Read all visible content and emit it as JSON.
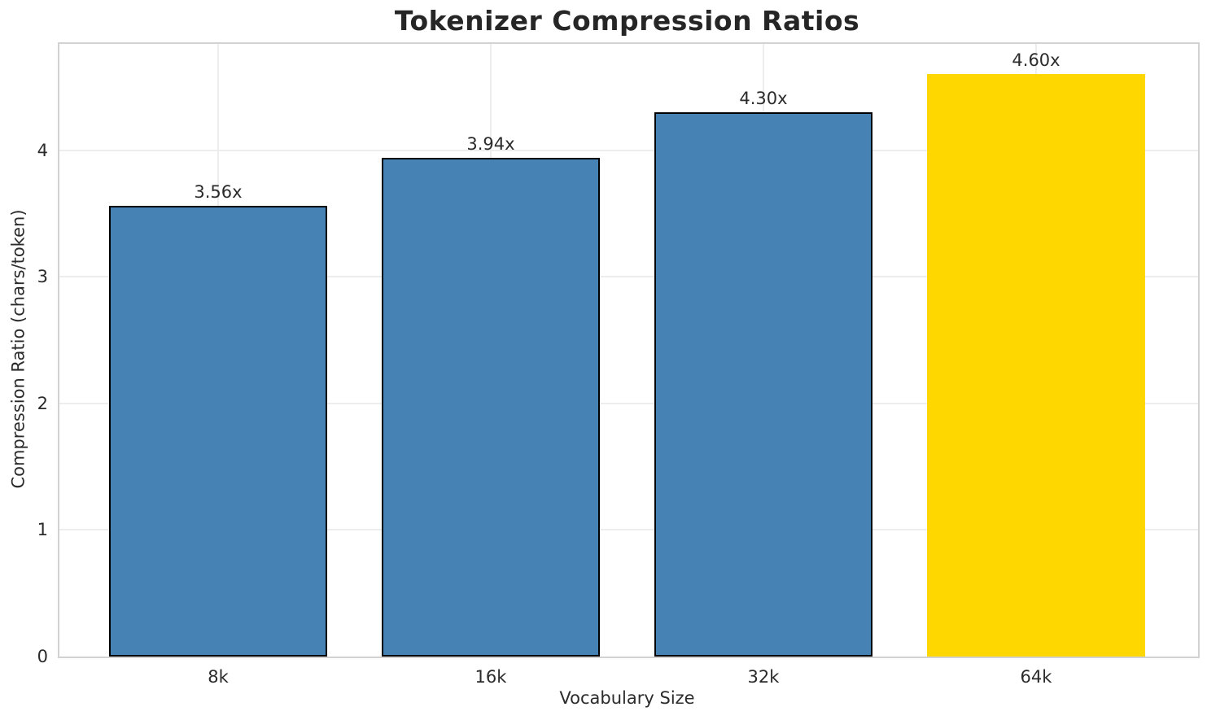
{
  "chart_data": {
    "type": "bar",
    "title": "Tokenizer Compression Ratios",
    "xlabel": "Vocabulary Size",
    "ylabel": "Compression Ratio (chars/token)",
    "categories": [
      "8k",
      "16k",
      "32k",
      "64k"
    ],
    "values": [
      3.56,
      3.94,
      4.3,
      4.6
    ],
    "bar_labels": [
      "3.56x",
      "3.94x",
      "4.30x",
      "4.60x"
    ],
    "bar_colors": [
      "#4682b4",
      "#4682b4",
      "#4682b4",
      "#ffd700"
    ],
    "bar_edge_colors": [
      "#000000",
      "#000000",
      "#000000",
      "none"
    ],
    "yticks": [
      "0",
      "1",
      "2",
      "3",
      "4"
    ],
    "ylim": [
      0,
      4.84
    ],
    "grid": "on",
    "legend_position": "none",
    "colors": {
      "bar_default": "#4682b4",
      "bar_highlight": "#ffd700",
      "bar_edge": "#000000",
      "grid": "#ededed",
      "spine": "#d2d2d2",
      "text": "#2b2b2b"
    }
  }
}
